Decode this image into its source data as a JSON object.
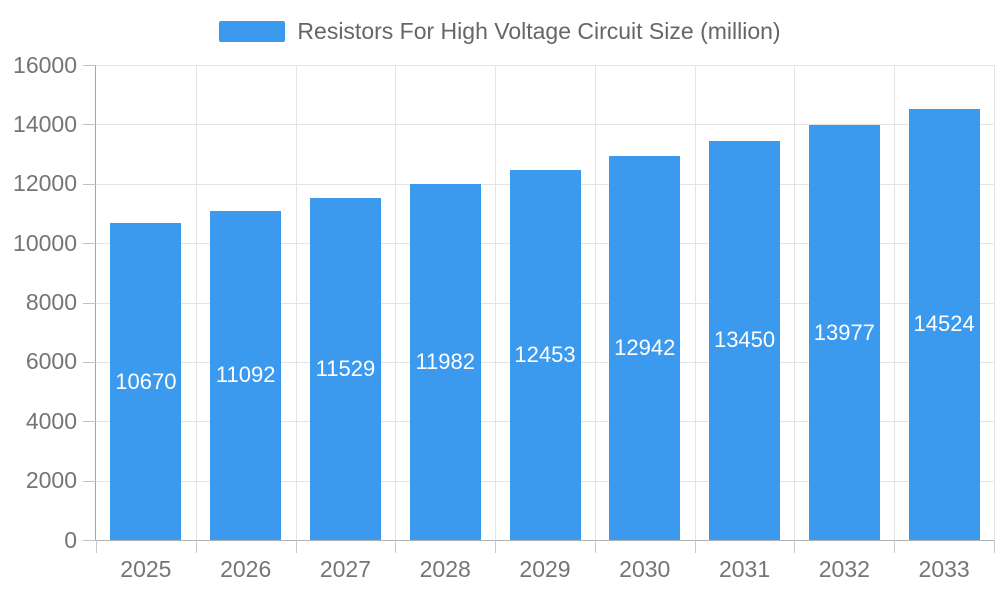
{
  "legend": {
    "label": "Resistors For High Voltage Circuit Size (million)",
    "swatch_color": "#3B99EE"
  },
  "chart_data": {
    "type": "bar",
    "title": "",
    "xlabel": "",
    "ylabel": "",
    "categories": [
      "2025",
      "2026",
      "2027",
      "2028",
      "2029",
      "2030",
      "2031",
      "2032",
      "2033"
    ],
    "series": [
      {
        "name": "Resistors For High Voltage Circuit Size (million)",
        "values": [
          10670,
          11092,
          11529,
          11982,
          12453,
          12942,
          13450,
          13977,
          14524
        ]
      }
    ],
    "ylim": [
      0,
      16000
    ],
    "ytick_step": 2000,
    "ytick_labels": [
      "0",
      "2000",
      "4000",
      "6000",
      "8000",
      "10000",
      "12000",
      "14000",
      "16000"
    ],
    "grid": true,
    "legend_position": "top",
    "bar_color": "#3B99EE",
    "value_label_color": "#FFFFFF",
    "axis_label_color": "#757575"
  }
}
